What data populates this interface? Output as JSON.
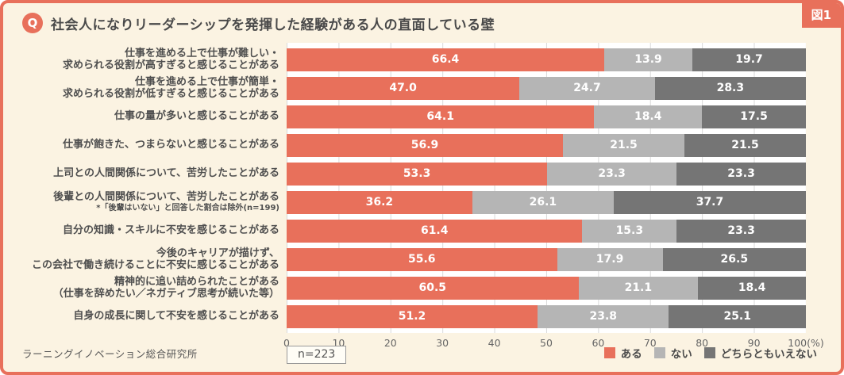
{
  "figure_tag": "図1",
  "header": {
    "q_badge": "Q",
    "title": "社会人になりリーダーシップを発揮した経験がある人の直面している壁"
  },
  "colors": {
    "frame_border": "#e8705b",
    "background": "#fbf3e2",
    "plot_background": "#ffffff",
    "gridline": "#d9d9d9",
    "series_yes": "#e8705b",
    "series_no": "#b5b5b5",
    "series_neither": "#757575"
  },
  "chart_data": {
    "type": "bar",
    "orientation": "horizontal-stacked",
    "unit": "%",
    "xlim": [
      0,
      100
    ],
    "x_ticks": [
      0,
      10,
      20,
      30,
      40,
      50,
      60,
      70,
      80,
      90,
      100
    ],
    "x_axis_suffix": "(%)",
    "grid": true,
    "legend_position": "bottom-right",
    "series_names": [
      "ある",
      "ない",
      "どちらともいえない"
    ],
    "series_keys": [
      "yes",
      "no",
      "neither"
    ],
    "categories": [
      {
        "label_lines": [
          "仕事を進める上で仕事が難しい・",
          "求められる役割が高すぎると感じることがある"
        ],
        "values": [
          66.4,
          13.9,
          19.7
        ]
      },
      {
        "label_lines": [
          "仕事を進める上で仕事が簡単・",
          "求められる役割が低すぎると感じることがある"
        ],
        "values": [
          47.0,
          24.7,
          28.3
        ]
      },
      {
        "label_lines": [
          "仕事の量が多いと感じることがある"
        ],
        "values": [
          64.1,
          18.4,
          17.5
        ]
      },
      {
        "label_lines": [
          "仕事が飽きた、つまらないと感じることがある"
        ],
        "values": [
          56.9,
          21.5,
          21.5
        ]
      },
      {
        "label_lines": [
          "上司との人間関係について、苦労したことがある"
        ],
        "values": [
          53.3,
          23.3,
          23.3
        ]
      },
      {
        "label_lines": [
          "後輩との人間関係について、苦労したことがある"
        ],
        "footnote": "*「後輩はいない」と回答した割合は除外(n=199)",
        "values": [
          36.2,
          26.1,
          37.7
        ]
      },
      {
        "label_lines": [
          "自分の知識・スキルに不安を感じることがある"
        ],
        "values": [
          61.4,
          15.3,
          23.3
        ]
      },
      {
        "label_lines": [
          "今後のキャリアが描けず、",
          "この会社で働き続けることに不安に感じることがある"
        ],
        "values": [
          55.6,
          17.9,
          26.5
        ]
      },
      {
        "label_lines": [
          "精神的に追い詰められたことがある",
          "（仕事を辞めたい／ネガティブ思考が続いた等）"
        ],
        "values": [
          60.5,
          21.1,
          18.4
        ]
      },
      {
        "label_lines": [
          "自身の成長に関して不安を感じることがある"
        ],
        "values": [
          51.2,
          23.8,
          25.1
        ]
      }
    ]
  },
  "sample_size": "n=223",
  "legend": [
    {
      "label": "ある",
      "color": "#e8705b"
    },
    {
      "label": "ない",
      "color": "#b5b5b5"
    },
    {
      "label": "どちらともいえない",
      "color": "#757575"
    }
  ],
  "source": "ラーニングイノベーション総合研究所"
}
